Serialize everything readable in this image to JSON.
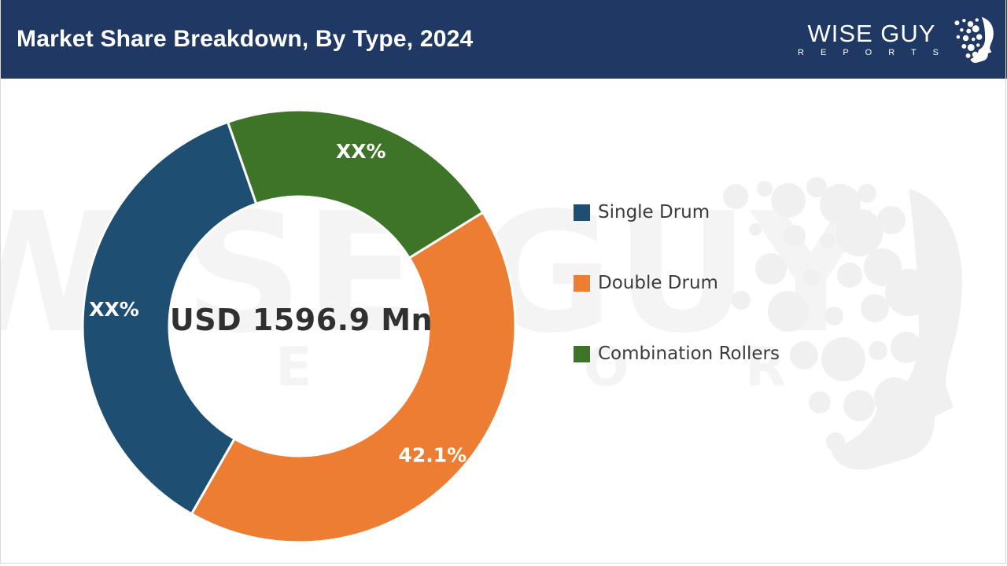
{
  "header": {
    "title": "Market Share Breakdown, By Type, 2024",
    "brand_line1": "WISE GUY",
    "brand_line2": "R E P O R T S",
    "bg_color": "#1f3864"
  },
  "watermark": {
    "line1": "WISE GUY",
    "line2": "R E P O R T S"
  },
  "chart_data": {
    "type": "pie",
    "subtype": "donut",
    "title": "Market Share Breakdown, By Type, 2024",
    "center_label": "USD 1596.9 Mn",
    "start_angle_deg": 109.2,
    "direction": "counterclockwise",
    "legend_position": "right",
    "slices": [
      {
        "name": "Single Drum",
        "value_pct": 36.4,
        "color": "#1f4e73",
        "label": "XX%"
      },
      {
        "name": "Double Drum",
        "value_pct": 42.1,
        "color": "#ed7d33",
        "label": "42.1%"
      },
      {
        "name": "Combination Rollers",
        "value_pct": 21.5,
        "color": "#3e7427",
        "label": "XX%"
      }
    ]
  }
}
